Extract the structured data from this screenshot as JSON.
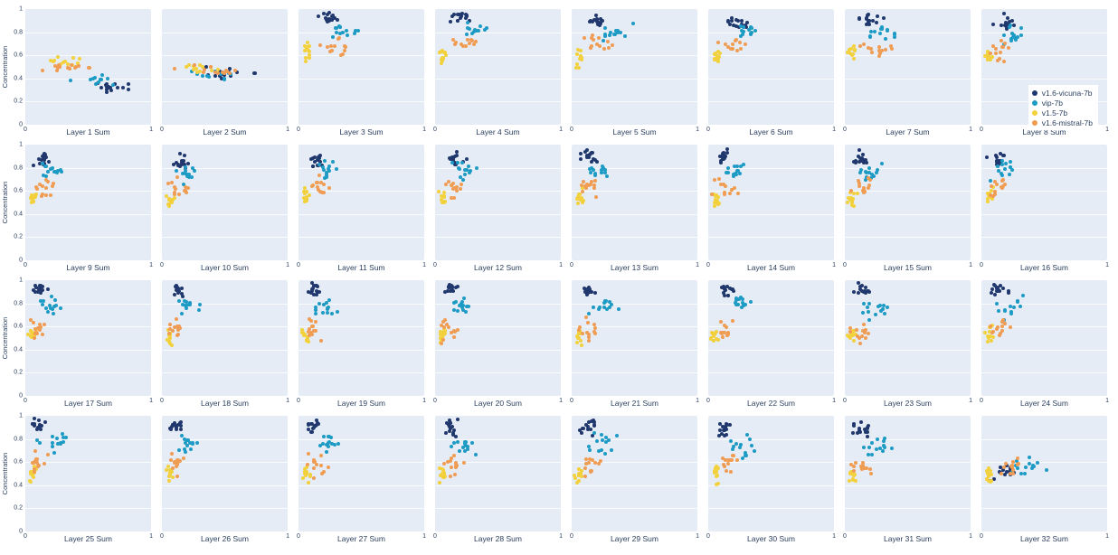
{
  "figure": {
    "background": "#ffffff",
    "panel_background": "#e5ecf6"
  },
  "chart_data": {
    "type": "scatter",
    "grid": {
      "rows": 4,
      "cols": 8
    },
    "title": "",
    "ylabel": "Concentration",
    "xlabel_pattern": "Layer N Sum",
    "xlim": [
      0,
      1
    ],
    "ylim": [
      0,
      1
    ],
    "x_ticks": [
      "0",
      "1"
    ],
    "y_ticks": [
      "1",
      "0.8",
      "0.6",
      "0.4",
      "0.2",
      "0"
    ],
    "legend_position": "top-right",
    "grid_on": false,
    "series": [
      {
        "name": "v1.6-vicuna-7b",
        "color": "#20386e"
      },
      {
        "name": "vip-7b",
        "color": "#1d9bc4"
      },
      {
        "name": "v1.5-7b",
        "color": "#f2d13d"
      },
      {
        "name": "v1.6-mistral-7b",
        "color": "#f09c52"
      }
    ],
    "cluster_format": [
      "center_x",
      "center_y",
      "spread_x",
      "spread_y",
      "n_points"
    ],
    "subplots": [
      {
        "title": "Layer 1 Sum",
        "clusters": [
          [
            0.72,
            0.33,
            0.14,
            0.03,
            16
          ],
          [
            0.55,
            0.38,
            0.16,
            0.04,
            12
          ],
          [
            0.28,
            0.55,
            0.14,
            0.05,
            12
          ],
          [
            0.35,
            0.5,
            0.18,
            0.06,
            14
          ]
        ]
      },
      {
        "title": "Layer 2 Sum",
        "clusters": [
          [
            0.55,
            0.44,
            0.2,
            0.05,
            16
          ],
          [
            0.45,
            0.42,
            0.18,
            0.04,
            12
          ],
          [
            0.3,
            0.48,
            0.15,
            0.06,
            12
          ],
          [
            0.38,
            0.47,
            0.2,
            0.05,
            14
          ]
        ]
      },
      {
        "title": "Layer 3 Sum",
        "clusters": [
          [
            0.25,
            0.92,
            0.08,
            0.04,
            16
          ],
          [
            0.36,
            0.8,
            0.1,
            0.05,
            14
          ],
          [
            0.07,
            0.63,
            0.03,
            0.07,
            12
          ],
          [
            0.3,
            0.68,
            0.12,
            0.07,
            13
          ]
        ]
      },
      {
        "title": "Layer 4 Sum",
        "clusters": [
          [
            0.2,
            0.92,
            0.07,
            0.04,
            15
          ],
          [
            0.3,
            0.82,
            0.09,
            0.05,
            14
          ],
          [
            0.06,
            0.6,
            0.03,
            0.07,
            12
          ],
          [
            0.22,
            0.72,
            0.1,
            0.06,
            12
          ]
        ]
      },
      {
        "title": "Layer 5 Sum",
        "clusters": [
          [
            0.2,
            0.9,
            0.08,
            0.05,
            15
          ],
          [
            0.33,
            0.79,
            0.11,
            0.06,
            14
          ],
          [
            0.06,
            0.58,
            0.03,
            0.07,
            12
          ],
          [
            0.25,
            0.7,
            0.12,
            0.07,
            13
          ]
        ]
      },
      {
        "title": "Layer 6 Sum",
        "clusters": [
          [
            0.24,
            0.88,
            0.09,
            0.05,
            15
          ],
          [
            0.3,
            0.8,
            0.1,
            0.05,
            14
          ],
          [
            0.06,
            0.6,
            0.03,
            0.07,
            12
          ],
          [
            0.2,
            0.68,
            0.1,
            0.06,
            13
          ]
        ]
      },
      {
        "title": "Layer 7 Sum",
        "clusters": [
          [
            0.22,
            0.9,
            0.09,
            0.05,
            15
          ],
          [
            0.3,
            0.8,
            0.1,
            0.06,
            14
          ],
          [
            0.06,
            0.62,
            0.03,
            0.07,
            12
          ],
          [
            0.26,
            0.66,
            0.12,
            0.07,
            13
          ]
        ]
      },
      {
        "title": "Layer 8 Sum",
        "clusters": [
          [
            0.2,
            0.88,
            0.08,
            0.06,
            15
          ],
          [
            0.25,
            0.78,
            0.09,
            0.07,
            14
          ],
          [
            0.06,
            0.6,
            0.03,
            0.08,
            12
          ],
          [
            0.18,
            0.65,
            0.1,
            0.08,
            13
          ]
        ]
      },
      {
        "title": "Layer 9 Sum",
        "clusters": [
          [
            0.14,
            0.86,
            0.07,
            0.06,
            15
          ],
          [
            0.2,
            0.78,
            0.09,
            0.08,
            14
          ],
          [
            0.07,
            0.52,
            0.03,
            0.06,
            12
          ],
          [
            0.15,
            0.63,
            0.08,
            0.08,
            13
          ]
        ]
      },
      {
        "title": "Layer 10 Sum",
        "clusters": [
          [
            0.15,
            0.85,
            0.07,
            0.07,
            15
          ],
          [
            0.2,
            0.76,
            0.09,
            0.08,
            14
          ],
          [
            0.07,
            0.52,
            0.03,
            0.06,
            12
          ],
          [
            0.14,
            0.62,
            0.08,
            0.08,
            13
          ]
        ]
      },
      {
        "title": "Layer 11 Sum",
        "clusters": [
          [
            0.14,
            0.86,
            0.07,
            0.07,
            15
          ],
          [
            0.2,
            0.78,
            0.08,
            0.08,
            14
          ],
          [
            0.06,
            0.55,
            0.03,
            0.06,
            12
          ],
          [
            0.15,
            0.64,
            0.08,
            0.08,
            13
          ]
        ]
      },
      {
        "title": "Layer 12 Sum",
        "clusters": [
          [
            0.15,
            0.87,
            0.07,
            0.06,
            15
          ],
          [
            0.22,
            0.78,
            0.09,
            0.08,
            14
          ],
          [
            0.07,
            0.54,
            0.03,
            0.06,
            12
          ],
          [
            0.15,
            0.63,
            0.08,
            0.08,
            13
          ]
        ]
      },
      {
        "title": "Layer 13 Sum",
        "clusters": [
          [
            0.14,
            0.88,
            0.07,
            0.06,
            15
          ],
          [
            0.22,
            0.79,
            0.09,
            0.08,
            14
          ],
          [
            0.06,
            0.54,
            0.03,
            0.06,
            12
          ],
          [
            0.14,
            0.64,
            0.08,
            0.08,
            13
          ]
        ]
      },
      {
        "title": "Layer 14 Sum",
        "clusters": [
          [
            0.13,
            0.88,
            0.06,
            0.06,
            15
          ],
          [
            0.2,
            0.78,
            0.09,
            0.08,
            14
          ],
          [
            0.06,
            0.53,
            0.03,
            0.06,
            12
          ],
          [
            0.14,
            0.63,
            0.08,
            0.08,
            13
          ]
        ]
      },
      {
        "title": "Layer 15 Sum",
        "clusters": [
          [
            0.13,
            0.88,
            0.06,
            0.06,
            15
          ],
          [
            0.2,
            0.78,
            0.08,
            0.08,
            14
          ],
          [
            0.06,
            0.54,
            0.03,
            0.06,
            12
          ],
          [
            0.14,
            0.63,
            0.08,
            0.08,
            13
          ]
        ]
      },
      {
        "title": "Layer 16 Sum",
        "clusters": [
          [
            0.14,
            0.88,
            0.07,
            0.06,
            15
          ],
          [
            0.18,
            0.78,
            0.08,
            0.09,
            14
          ],
          [
            0.06,
            0.55,
            0.03,
            0.07,
            12
          ],
          [
            0.13,
            0.64,
            0.07,
            0.09,
            13
          ]
        ]
      },
      {
        "title": "Layer 17 Sum",
        "clusters": [
          [
            0.11,
            0.93,
            0.05,
            0.04,
            15
          ],
          [
            0.2,
            0.78,
            0.08,
            0.07,
            14
          ],
          [
            0.06,
            0.54,
            0.03,
            0.06,
            12
          ],
          [
            0.1,
            0.58,
            0.06,
            0.08,
            13
          ]
        ]
      },
      {
        "title": "Layer 18 Sum",
        "clusters": [
          [
            0.12,
            0.92,
            0.05,
            0.05,
            15
          ],
          [
            0.2,
            0.78,
            0.08,
            0.07,
            14
          ],
          [
            0.06,
            0.53,
            0.03,
            0.06,
            12
          ],
          [
            0.12,
            0.58,
            0.07,
            0.08,
            13
          ]
        ]
      },
      {
        "title": "Layer 19 Sum",
        "clusters": [
          [
            0.13,
            0.92,
            0.05,
            0.05,
            15
          ],
          [
            0.22,
            0.77,
            0.09,
            0.07,
            14
          ],
          [
            0.06,
            0.52,
            0.03,
            0.06,
            12
          ],
          [
            0.13,
            0.58,
            0.07,
            0.09,
            13
          ]
        ]
      },
      {
        "title": "Layer 20 Sum",
        "clusters": [
          [
            0.12,
            0.93,
            0.05,
            0.04,
            15
          ],
          [
            0.2,
            0.78,
            0.08,
            0.07,
            14
          ],
          [
            0.06,
            0.52,
            0.03,
            0.06,
            12
          ],
          [
            0.12,
            0.57,
            0.07,
            0.09,
            13
          ]
        ]
      },
      {
        "title": "Layer 21 Sum",
        "clusters": [
          [
            0.14,
            0.92,
            0.06,
            0.05,
            15
          ],
          [
            0.25,
            0.78,
            0.1,
            0.07,
            14
          ],
          [
            0.06,
            0.52,
            0.03,
            0.06,
            12
          ],
          [
            0.13,
            0.58,
            0.08,
            0.09,
            13
          ]
        ]
      },
      {
        "title": "Layer 22 Sum",
        "clusters": [
          [
            0.14,
            0.92,
            0.06,
            0.05,
            15
          ],
          [
            0.26,
            0.78,
            0.1,
            0.07,
            14
          ],
          [
            0.06,
            0.52,
            0.03,
            0.06,
            12
          ],
          [
            0.14,
            0.58,
            0.08,
            0.09,
            13
          ]
        ]
      },
      {
        "title": "Layer 23 Sum",
        "clusters": [
          [
            0.14,
            0.92,
            0.06,
            0.05,
            15
          ],
          [
            0.25,
            0.77,
            0.1,
            0.08,
            14
          ],
          [
            0.06,
            0.53,
            0.03,
            0.06,
            12
          ],
          [
            0.14,
            0.58,
            0.08,
            0.09,
            13
          ]
        ]
      },
      {
        "title": "Layer 24 Sum",
        "clusters": [
          [
            0.14,
            0.92,
            0.06,
            0.05,
            15
          ],
          [
            0.24,
            0.77,
            0.1,
            0.08,
            14
          ],
          [
            0.06,
            0.53,
            0.03,
            0.07,
            12
          ],
          [
            0.14,
            0.58,
            0.08,
            0.09,
            13
          ]
        ]
      },
      {
        "title": "Layer 25 Sum",
        "clusters": [
          [
            0.1,
            0.92,
            0.05,
            0.05,
            15
          ],
          [
            0.22,
            0.76,
            0.1,
            0.08,
            14
          ],
          [
            0.06,
            0.5,
            0.03,
            0.06,
            12
          ],
          [
            0.12,
            0.58,
            0.07,
            0.09,
            13
          ]
        ]
      },
      {
        "title": "Layer 26 Sum",
        "clusters": [
          [
            0.11,
            0.91,
            0.05,
            0.05,
            15
          ],
          [
            0.22,
            0.75,
            0.1,
            0.08,
            14
          ],
          [
            0.06,
            0.5,
            0.03,
            0.06,
            12
          ],
          [
            0.13,
            0.58,
            0.07,
            0.09,
            13
          ]
        ]
      },
      {
        "title": "Layer 27 Sum",
        "clusters": [
          [
            0.12,
            0.91,
            0.05,
            0.06,
            15
          ],
          [
            0.25,
            0.74,
            0.11,
            0.08,
            14
          ],
          [
            0.06,
            0.5,
            0.03,
            0.06,
            12
          ],
          [
            0.14,
            0.58,
            0.08,
            0.09,
            13
          ]
        ]
      },
      {
        "title": "Layer 28 Sum",
        "clusters": [
          [
            0.12,
            0.9,
            0.05,
            0.06,
            15
          ],
          [
            0.24,
            0.74,
            0.1,
            0.08,
            14
          ],
          [
            0.06,
            0.5,
            0.03,
            0.07,
            12
          ],
          [
            0.13,
            0.57,
            0.08,
            0.09,
            13
          ]
        ]
      },
      {
        "title": "Layer 29 Sum",
        "clusters": [
          [
            0.13,
            0.9,
            0.06,
            0.06,
            15
          ],
          [
            0.26,
            0.74,
            0.11,
            0.08,
            14
          ],
          [
            0.06,
            0.5,
            0.03,
            0.07,
            12
          ],
          [
            0.14,
            0.57,
            0.08,
            0.09,
            13
          ]
        ]
      },
      {
        "title": "Layer 30 Sum",
        "clusters": [
          [
            0.13,
            0.89,
            0.06,
            0.06,
            15
          ],
          [
            0.28,
            0.73,
            0.12,
            0.08,
            14
          ],
          [
            0.06,
            0.5,
            0.03,
            0.07,
            12
          ],
          [
            0.15,
            0.57,
            0.08,
            0.09,
            13
          ]
        ]
      },
      {
        "title": "Layer 31 Sum",
        "clusters": [
          [
            0.13,
            0.89,
            0.06,
            0.07,
            15
          ],
          [
            0.27,
            0.72,
            0.12,
            0.09,
            14
          ],
          [
            0.06,
            0.5,
            0.03,
            0.07,
            12
          ],
          [
            0.15,
            0.56,
            0.08,
            0.09,
            13
          ]
        ]
      },
      {
        "title": "Layer 32 Sum",
        "clusters": [
          [
            0.2,
            0.5,
            0.1,
            0.07,
            15
          ],
          [
            0.35,
            0.55,
            0.14,
            0.09,
            14
          ],
          [
            0.07,
            0.5,
            0.04,
            0.08,
            12
          ],
          [
            0.22,
            0.55,
            0.11,
            0.09,
            13
          ]
        ]
      }
    ]
  }
}
